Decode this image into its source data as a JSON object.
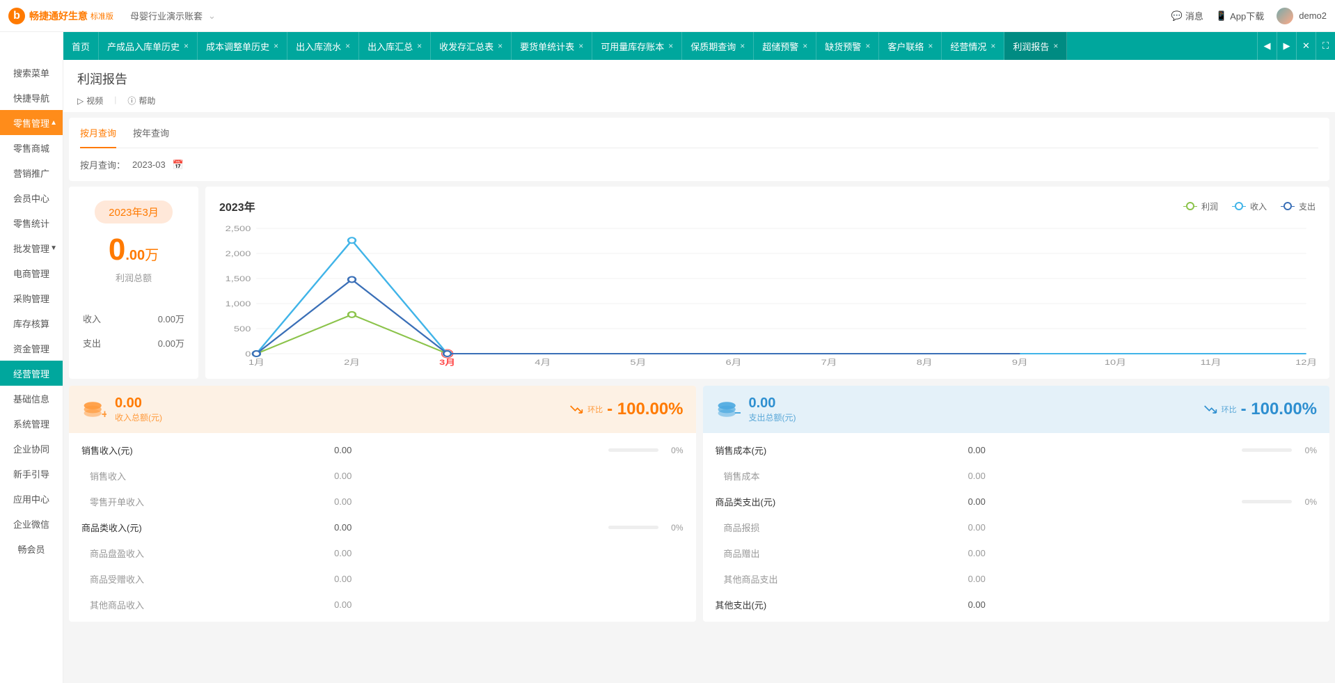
{
  "header": {
    "logo_text": "畅捷通好生意",
    "logo_sub": "标准版",
    "breadcrumb": "母婴行业演示账套",
    "msg_label": "消息",
    "app_label": "App下载",
    "username": "demo2"
  },
  "tabs": {
    "items": [
      {
        "label": "首页",
        "closable": false
      },
      {
        "label": "产成品入库单历史",
        "closable": true
      },
      {
        "label": "成本调整单历史",
        "closable": true
      },
      {
        "label": "出入库流水",
        "closable": true
      },
      {
        "label": "出入库汇总",
        "closable": true
      },
      {
        "label": "收发存汇总表",
        "closable": true
      },
      {
        "label": "要货单统计表",
        "closable": true
      },
      {
        "label": "可用量库存账本",
        "closable": true
      },
      {
        "label": "保质期查询",
        "closable": true
      },
      {
        "label": "超储预警",
        "closable": true
      },
      {
        "label": "缺货预警",
        "closable": true
      },
      {
        "label": "客户联络",
        "closable": true
      },
      {
        "label": "经营情况",
        "closable": true
      },
      {
        "label": "利润报告",
        "closable": true,
        "active": true
      }
    ]
  },
  "sidebar": {
    "items": [
      {
        "label": "搜索菜单"
      },
      {
        "label": "快捷导航"
      },
      {
        "label": "零售管理",
        "active": "orange",
        "arrow": "▲"
      },
      {
        "label": "零售商城"
      },
      {
        "label": "营销推广"
      },
      {
        "label": "会员中心"
      },
      {
        "label": "零售统计"
      },
      {
        "label": "批发管理",
        "arrow": "▼"
      },
      {
        "label": "电商管理"
      },
      {
        "label": "采购管理"
      },
      {
        "label": "库存核算"
      },
      {
        "label": "资金管理"
      },
      {
        "label": "经营管理",
        "active": "teal"
      },
      {
        "label": "基础信息"
      },
      {
        "label": "系统管理"
      },
      {
        "label": "企业协同"
      },
      {
        "label": "新手引导"
      },
      {
        "label": "应用中心"
      },
      {
        "label": "企业微信"
      },
      {
        "label": "畅会员"
      }
    ]
  },
  "page": {
    "title": "利润报告",
    "video": "视频",
    "help": "帮助",
    "sub_tabs": [
      {
        "label": "按月查询",
        "active": true
      },
      {
        "label": "按年查询"
      }
    ],
    "query_label": "按月查询：",
    "query_value": "2023-03"
  },
  "summary": {
    "badge": "2023年3月",
    "big_int": "0",
    "big_dec": ".00",
    "big_unit": "万",
    "label": "利润总额",
    "stats": [
      {
        "name": "收入",
        "value": "0.00万"
      },
      {
        "name": "支出",
        "value": "0.00万"
      }
    ]
  },
  "chart": {
    "title": "2023年",
    "legend": [
      {
        "label": "利润",
        "color": "#8bc34a"
      },
      {
        "label": "收入",
        "color": "#40b4e8"
      },
      {
        "label": "支出",
        "color": "#3a6fb7"
      }
    ],
    "y_max": 2500,
    "y_step": 500,
    "x_labels": [
      "1月",
      "2月",
      "3月",
      "4月",
      "5月",
      "6月",
      "7月",
      "8月",
      "9月",
      "10月",
      "11月",
      "12月"
    ],
    "x_active_index": 2,
    "series": [
      {
        "color": "#8bc34a",
        "values": [
          0,
          780,
          0,
          0,
          0,
          0,
          0,
          0,
          0,
          0,
          0,
          0
        ],
        "draw_until": 2
      },
      {
        "color": "#40b4e8",
        "values": [
          0,
          2260,
          0,
          0,
          0,
          0,
          0,
          0,
          0,
          0,
          0,
          0
        ],
        "draw_until": 11
      },
      {
        "color": "#3a6fb7",
        "values": [
          0,
          1480,
          0,
          0,
          0,
          0,
          0,
          0,
          0,
          0,
          0,
          0
        ],
        "draw_until": 8
      }
    ],
    "grid_color": "#f0f0f0",
    "bg": "#ffffff"
  },
  "income": {
    "value": "0.00",
    "label": "收入总额(元)",
    "delta_label": "环比",
    "delta_value": "- 100.00%",
    "rows": [
      {
        "type": "main",
        "name": "销售收入(元)",
        "value": "0.00",
        "pct": "0%"
      },
      {
        "type": "sub",
        "name": "销售收入",
        "value": "0.00"
      },
      {
        "type": "sub",
        "name": "零售开单收入",
        "value": "0.00"
      },
      {
        "type": "main",
        "name": "商品类收入(元)",
        "value": "0.00",
        "pct": "0%"
      },
      {
        "type": "sub",
        "name": "商品盘盈收入",
        "value": "0.00"
      },
      {
        "type": "sub",
        "name": "商品受赠收入",
        "value": "0.00"
      },
      {
        "type": "sub",
        "name": "其他商品收入",
        "value": "0.00"
      }
    ]
  },
  "expense": {
    "value": "0.00",
    "label": "支出总额(元)",
    "delta_label": "环比",
    "delta_value": "- 100.00%",
    "rows": [
      {
        "type": "main",
        "name": "销售成本(元)",
        "value": "0.00",
        "pct": "0%"
      },
      {
        "type": "sub",
        "name": "销售成本",
        "value": "0.00"
      },
      {
        "type": "main",
        "name": "商品类支出(元)",
        "value": "0.00",
        "pct": "0%"
      },
      {
        "type": "sub",
        "name": "商品报损",
        "value": "0.00"
      },
      {
        "type": "sub",
        "name": "商品赠出",
        "value": "0.00"
      },
      {
        "type": "sub",
        "name": "其他商品支出",
        "value": "0.00"
      },
      {
        "type": "main",
        "name": "其他支出(元)",
        "value": "0.00"
      }
    ]
  }
}
